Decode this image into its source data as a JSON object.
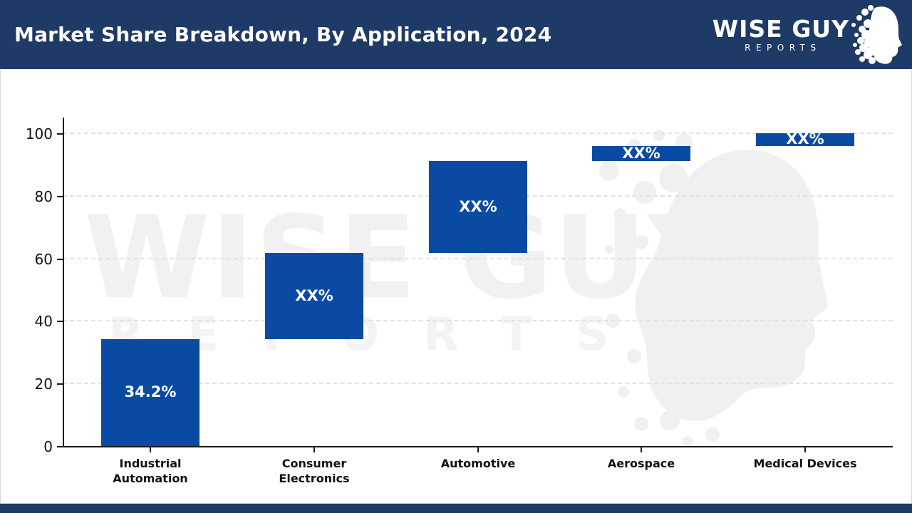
{
  "header": {
    "title": "Market Share Breakdown, By Application, 2024",
    "logo_line1": "WISE GUY",
    "logo_line2": "REPORTS"
  },
  "watermark": {
    "line1": "WISE GUY",
    "line2": "REPORTS"
  },
  "chart_data": {
    "type": "bar",
    "subtype": "waterfall",
    "title": "Market Share Breakdown, By Application, 2024",
    "categories": [
      "Industrial\nAutomation",
      "Consumer\nElectronics",
      "Automotive",
      "Aerospace",
      "Medical Devices"
    ],
    "segments": [
      {
        "category": "Industrial Automation",
        "start": 0,
        "end": 34.2,
        "increment_pct": 34.2,
        "label": "34.2%"
      },
      {
        "category": "Consumer Electronics",
        "start": 34.2,
        "end": 61.7,
        "increment_pct": 27.5,
        "label": "XX%"
      },
      {
        "category": "Automotive",
        "start": 61.7,
        "end": 91.2,
        "increment_pct": 29.5,
        "label": "XX%"
      },
      {
        "category": "Aerospace",
        "start": 91.2,
        "end": 96.0,
        "increment_pct": 4.8,
        "label": "XX%"
      },
      {
        "category": "Medical Devices",
        "start": 96.0,
        "end": 100.0,
        "increment_pct": 4.0,
        "label": "XX%"
      }
    ],
    "xlabel": "",
    "ylabel": "",
    "ylim": [
      0,
      100
    ],
    "yticks": [
      0,
      20,
      40,
      60,
      80,
      100
    ],
    "grid": "horizontal-dashed",
    "legend": "none",
    "colors": {
      "bar": "#0b4aa2",
      "bar_label": "#ffffff",
      "axis": "#1a1a1a",
      "gridline": "#e2e2e2",
      "header_bg": "#1e3a67",
      "footer_bg": "#1e3a67",
      "watermark": "#f1f1f4"
    }
  }
}
